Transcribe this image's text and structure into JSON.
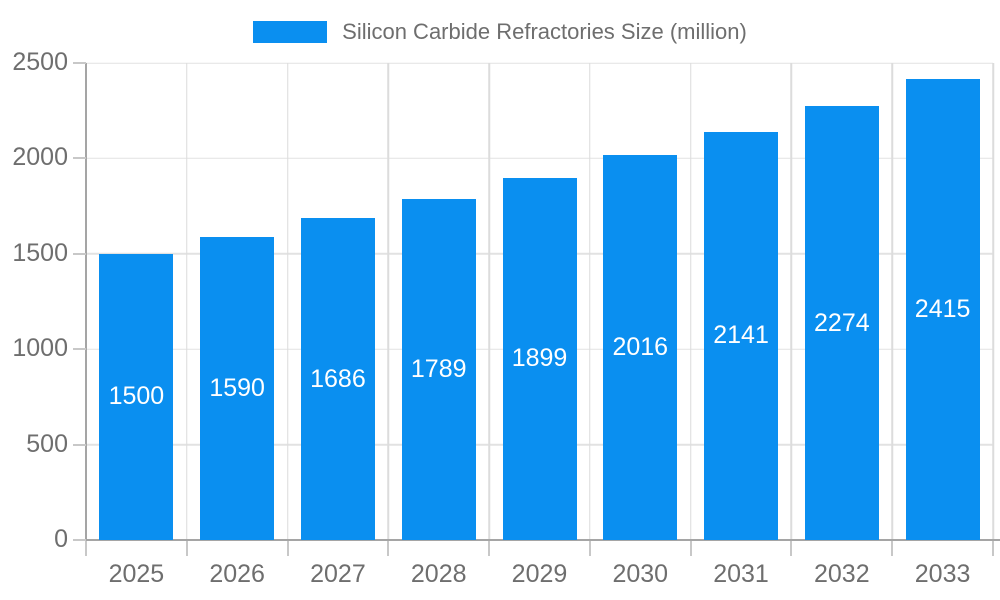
{
  "chart_data": {
    "type": "bar",
    "title": "",
    "categories": [
      "2025",
      "2026",
      "2027",
      "2028",
      "2029",
      "2030",
      "2031",
      "2032",
      "2033"
    ],
    "series": [
      {
        "name": "Silicon Carbide Refractories Size (million)",
        "values": [
          1500,
          1590,
          1686,
          1789,
          1899,
          2016,
          2141,
          2274,
          2415
        ]
      }
    ],
    "xlabel": "",
    "ylabel": "",
    "ylim": [
      0,
      2500
    ],
    "yticks": [
      0,
      500,
      1000,
      1500,
      2000,
      2500
    ],
    "grid": true,
    "legend_position": "top",
    "colors": {
      "bar": "#0a8ff0",
      "value_label": "#ffffff",
      "axis_line": "#a5a5a5",
      "gridline": "#dedede",
      "tick_text": "#6e6e6e",
      "background": "#ffffff"
    }
  }
}
